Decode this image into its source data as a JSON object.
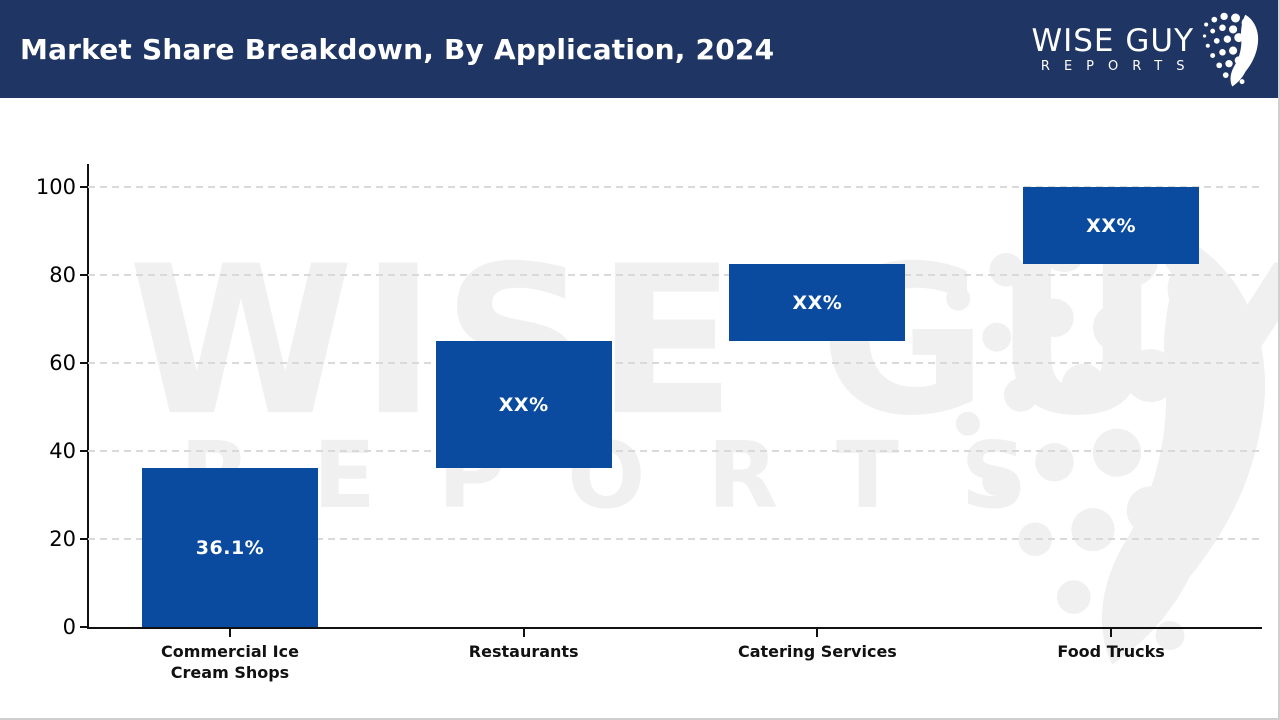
{
  "header": {
    "title": "Market Share Breakdown, By Application, 2024",
    "bg_color": "#1F3563",
    "title_color": "#ffffff",
    "logo": {
      "wordmark": "WISE GUY",
      "subtitle": "REPORTS"
    }
  },
  "watermark": {
    "line1": "WISE GUY",
    "line2": "REPORTS",
    "color": "#f0f0f0"
  },
  "chart_data": {
    "type": "bar",
    "subtype": "floating-waterfall",
    "title": "Market Share Breakdown, By Application, 2024",
    "categories": [
      "Commercial Ice Cream Shops",
      "Restaurants",
      "Catering Services",
      "Food Trucks"
    ],
    "bars": [
      {
        "category": "Commercial Ice Cream Shops",
        "start": 0,
        "end": 36.1,
        "label": "36.1%"
      },
      {
        "category": "Restaurants",
        "start": 36.1,
        "end": 65,
        "label": "XX%"
      },
      {
        "category": "Catering Services",
        "start": 65,
        "end": 82.5,
        "label": "XX%"
      },
      {
        "category": "Food Trucks",
        "start": 82.5,
        "end": 100,
        "label": "XX%"
      }
    ],
    "xlabel": "",
    "ylabel": "",
    "ylim": [
      0,
      105
    ],
    "yticks": [
      0,
      20,
      40,
      60,
      80,
      100
    ],
    "grid": "horizontal-dashed",
    "legend": "none",
    "bar_color": "#0A4A9F",
    "bar_label_color": "#ffffff",
    "gridline_color": "#d9d9d9",
    "axis_color": "#111111"
  }
}
